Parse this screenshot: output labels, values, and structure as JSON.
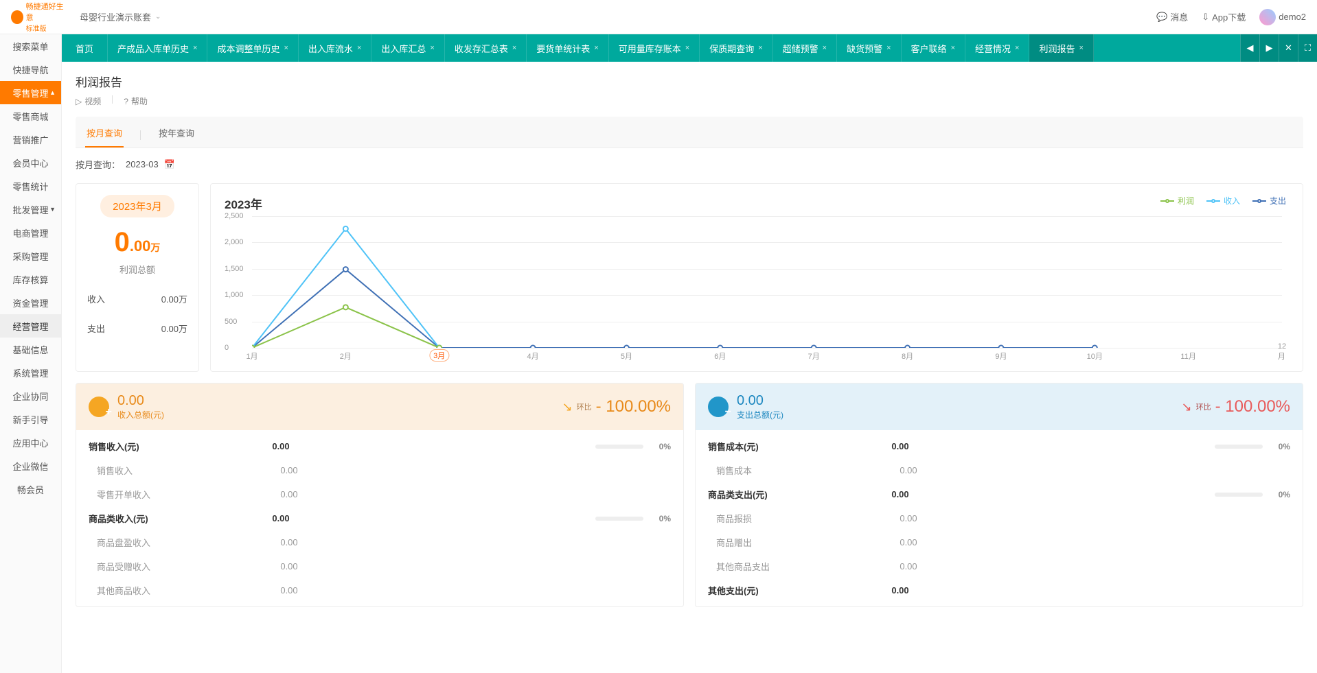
{
  "logo": {
    "name": "畅捷通好生意",
    "sub": "标准版"
  },
  "accountSelector": "母婴行业演示账套",
  "topRight": {
    "message": "消息",
    "appDownload": "App下载",
    "user": "demo2"
  },
  "sidebar": [
    {
      "label": "搜索菜单",
      "active": false
    },
    {
      "label": "快捷导航",
      "active": false
    },
    {
      "label": "零售管理",
      "active": true,
      "caret": "▲"
    },
    {
      "label": "零售商城",
      "active": false
    },
    {
      "label": "营销推广",
      "active": false
    },
    {
      "label": "会员中心",
      "active": false
    },
    {
      "label": "零售统计",
      "active": false
    },
    {
      "label": "批发管理",
      "active": false,
      "caret": "▼"
    },
    {
      "label": "电商管理",
      "active": false
    },
    {
      "label": "采购管理",
      "active": false
    },
    {
      "label": "库存核算",
      "active": false
    },
    {
      "label": "资金管理",
      "active": false
    },
    {
      "label": "经营管理",
      "active": false,
      "selected": true
    },
    {
      "label": "基础信息",
      "active": false
    },
    {
      "label": "系统管理",
      "active": false
    },
    {
      "label": "企业协同",
      "active": false
    },
    {
      "label": "新手引导",
      "active": false
    },
    {
      "label": "应用中心",
      "active": false
    },
    {
      "label": "企业微信",
      "active": false
    },
    {
      "label": "畅会员",
      "active": false
    }
  ],
  "tabs": {
    "home": "首页",
    "items": [
      "产成品入库单历史",
      "成本调整单历史",
      "出入库流水",
      "出入库汇总",
      "收发存汇总表",
      "要货单统计表",
      "可用量库存账本",
      "保质期查询",
      "超储预警",
      "缺货预警",
      "客户联络",
      "经营情况",
      "利润报告"
    ],
    "activeIndex": 12
  },
  "page": {
    "title": "利润报告",
    "video": "视频",
    "help": "帮助"
  },
  "subtabs": {
    "month": "按月查询",
    "year": "按年查询"
  },
  "monthQuery": {
    "label": "按月查询：",
    "value": "2023-03"
  },
  "summary": {
    "period": "2023年3月",
    "bigInt": "0",
    "bigDec": ".00",
    "bigUnit": "万",
    "profitLabel": "利润总额",
    "incomeLabel": "收入",
    "incomeVal": "0.00万",
    "expenseLabel": "支出",
    "expenseVal": "0.00万"
  },
  "chart": {
    "title": "2023年",
    "legend": {
      "profit": "利润",
      "income": "收入",
      "expense": "支出"
    },
    "colors": {
      "profit": "#8bc34a",
      "income": "#4fc3f7",
      "expense": "#3f70b5"
    },
    "yTicks": [
      0,
      500,
      1000,
      1500,
      2000,
      2500
    ],
    "yMax": 2500,
    "xLabels": [
      "1月",
      "2月",
      "3月",
      "4月",
      "5月",
      "6月",
      "7月",
      "8月",
      "9月",
      "10月",
      "11月",
      "12月"
    ],
    "highlightX": 2,
    "series": {
      "profit": [
        0,
        770,
        0,
        0,
        0,
        0,
        0,
        0,
        0,
        0,
        0,
        0
      ],
      "income": [
        0,
        2260,
        0,
        0,
        0,
        0,
        0,
        0,
        0,
        0,
        0,
        0
      ],
      "expense": [
        0,
        1490,
        0,
        0,
        0,
        0,
        0,
        0,
        0,
        0,
        0,
        0
      ]
    },
    "lastDrawnIndex": {
      "profit": 2,
      "income": 2,
      "expense": 9
    }
  },
  "panels": {
    "income": {
      "headVal": "0.00",
      "headLabel": "收入总额(元)",
      "hb": "环比",
      "pct": "- 100.00%",
      "rows": [
        {
          "label": "销售收入(元)",
          "val": "0.00",
          "pct": "0%",
          "bold": true
        },
        {
          "label": "销售收入",
          "val": "0.00",
          "sub": true
        },
        {
          "label": "零售开单收入",
          "val": "0.00",
          "sub": true
        },
        {
          "label": "商品类收入(元)",
          "val": "0.00",
          "pct": "0%",
          "bold": true
        },
        {
          "label": "商品盘盈收入",
          "val": "0.00",
          "sub": true
        },
        {
          "label": "商品受赠收入",
          "val": "0.00",
          "sub": true
        },
        {
          "label": "其他商品收入",
          "val": "0.00",
          "sub": true
        }
      ]
    },
    "expense": {
      "headVal": "0.00",
      "headLabel": "支出总额(元)",
      "hb": "环比",
      "pct": "- 100.00%",
      "rows": [
        {
          "label": "销售成本(元)",
          "val": "0.00",
          "pct": "0%",
          "bold": true
        },
        {
          "label": "销售成本",
          "val": "0.00",
          "sub": true
        },
        {
          "label": "商品类支出(元)",
          "val": "0.00",
          "pct": "0%",
          "bold": true
        },
        {
          "label": "商品报损",
          "val": "0.00",
          "sub": true
        },
        {
          "label": "商品赠出",
          "val": "0.00",
          "sub": true
        },
        {
          "label": "其他商品支出",
          "val": "0.00",
          "sub": true
        },
        {
          "label": "其他支出(元)",
          "val": "0.00",
          "bold": true
        }
      ]
    }
  }
}
